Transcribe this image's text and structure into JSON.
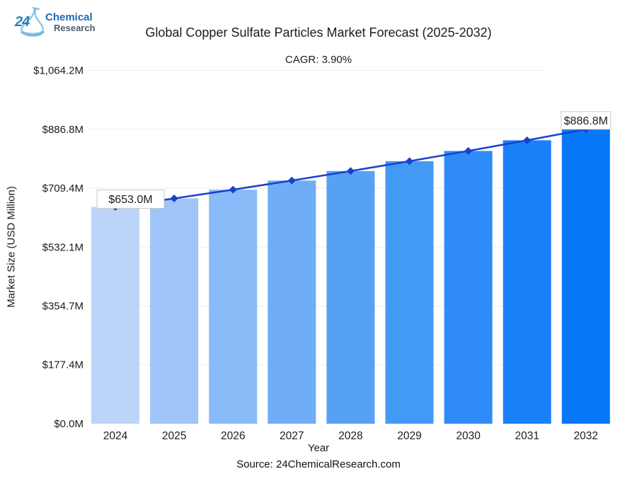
{
  "logo": {
    "number": "24",
    "line1": "Chemical",
    "line2": "Research"
  },
  "header": {
    "title": "Global Copper Sulfate Particles Market Forecast (2025-2032)",
    "subtitle": "CAGR: 3.90%"
  },
  "footer": {
    "source": "Source: 24ChemicalResearch.com"
  },
  "chart_data": {
    "type": "bar",
    "overlay": "line",
    "title": "Global Copper Sulfate Particles Market Forecast (2025-2032)",
    "subtitle": "CAGR: 3.90%",
    "xlabel": "Year",
    "ylabel": "Market Size (USD Million)",
    "categories": [
      "2024",
      "2025",
      "2026",
      "2027",
      "2028",
      "2029",
      "2030",
      "2031",
      "2032"
    ],
    "values": [
      653.0,
      678.5,
      704.9,
      732.4,
      761.0,
      790.7,
      821.5,
      853.6,
      886.8
    ],
    "ylim": [
      0,
      1064.2
    ],
    "yticks": [
      0.0,
      177.4,
      354.7,
      532.1,
      709.4,
      886.8,
      1064.2
    ],
    "ytick_labels": [
      "$0.0M",
      "$177.4M",
      "$354.7M",
      "$532.1M",
      "$709.4M",
      "$886.8M",
      "$1,064.2M"
    ],
    "point_labels": [
      {
        "index": 0,
        "text": "$653.0M"
      },
      {
        "index": 8,
        "text": "$886.8M"
      }
    ],
    "grid": true,
    "legend": "none",
    "bar_colors": [
      "#bcd4f7",
      "#9fc4f7",
      "#8abaf7",
      "#70adf7",
      "#57a1f5",
      "#439af5",
      "#2e8bf7",
      "#1a80f7",
      "#0678f7"
    ],
    "line_color": "#1741cd",
    "marker_color": "#1741cd",
    "grid_color": "#ededed",
    "label_box_border": "#c9c9c9",
    "cagr_percent": 3.9
  }
}
